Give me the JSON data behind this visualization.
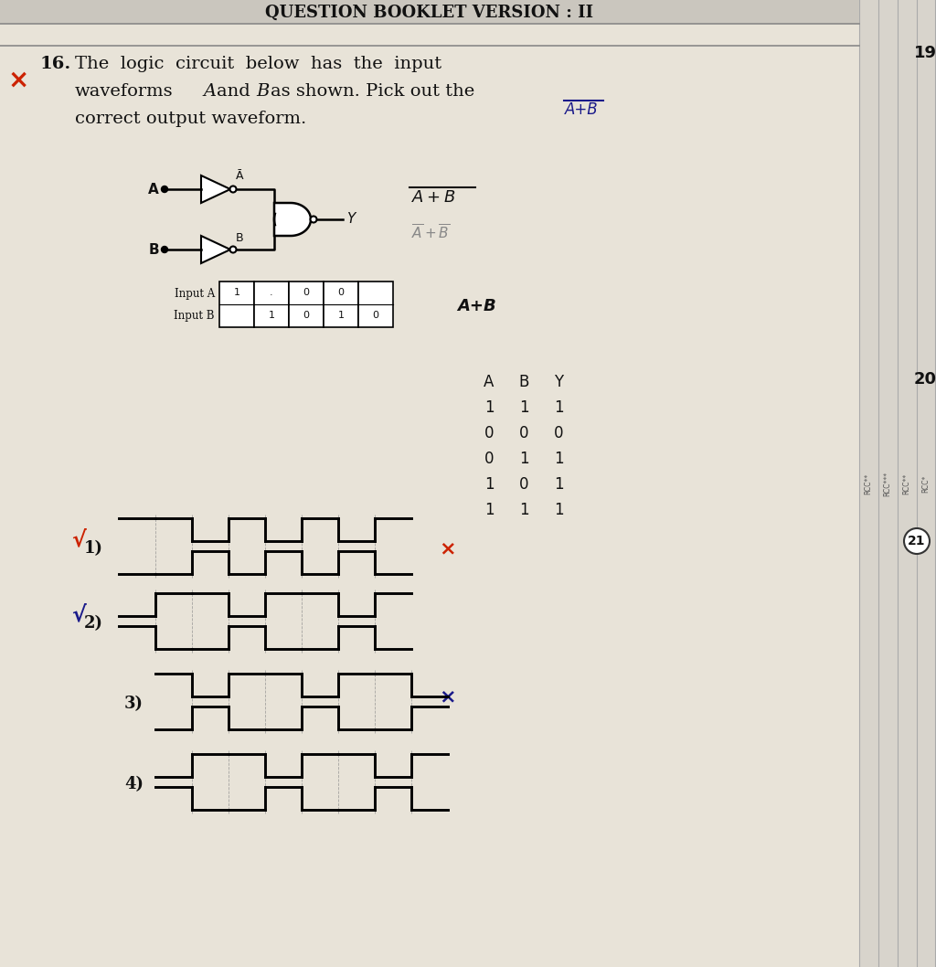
{
  "title": "QUESTION BOOKLET VERSION : II",
  "bg_color": "#e8e3d8",
  "right_margin_color": "#d8d4cc",
  "mark1_color": "#cc2200",
  "mark2_color": "#1a1a8a",
  "mark3_color": "#1a1a8a",
  "waveform1_top": [
    1,
    1,
    0,
    1,
    0,
    1,
    0,
    1
  ],
  "waveform1_bot": [
    0,
    0,
    1,
    0,
    1,
    0,
    1,
    0
  ],
  "waveform2_top": [
    0,
    1,
    1,
    0,
    1,
    1,
    0,
    1
  ],
  "waveform2_bot": [
    1,
    0,
    0,
    1,
    0,
    0,
    1,
    0
  ],
  "waveform3_top": [
    1,
    0,
    1,
    1,
    0,
    1,
    1,
    0
  ],
  "waveform3_bot": [
    0,
    1,
    0,
    0,
    1,
    0,
    0,
    1
  ],
  "waveform4_top": [
    0,
    1,
    1,
    0,
    1,
    1,
    0,
    1
  ],
  "waveform4_bot": [
    1,
    0,
    0,
    1,
    0,
    0,
    1,
    0
  ],
  "tt_A": [
    "1",
    "0",
    "0",
    "1",
    "1"
  ],
  "tt_B": [
    "1",
    "0",
    "1",
    "0",
    "1"
  ],
  "tt_Y": [
    "1",
    "0",
    "1",
    "1",
    "1"
  ]
}
